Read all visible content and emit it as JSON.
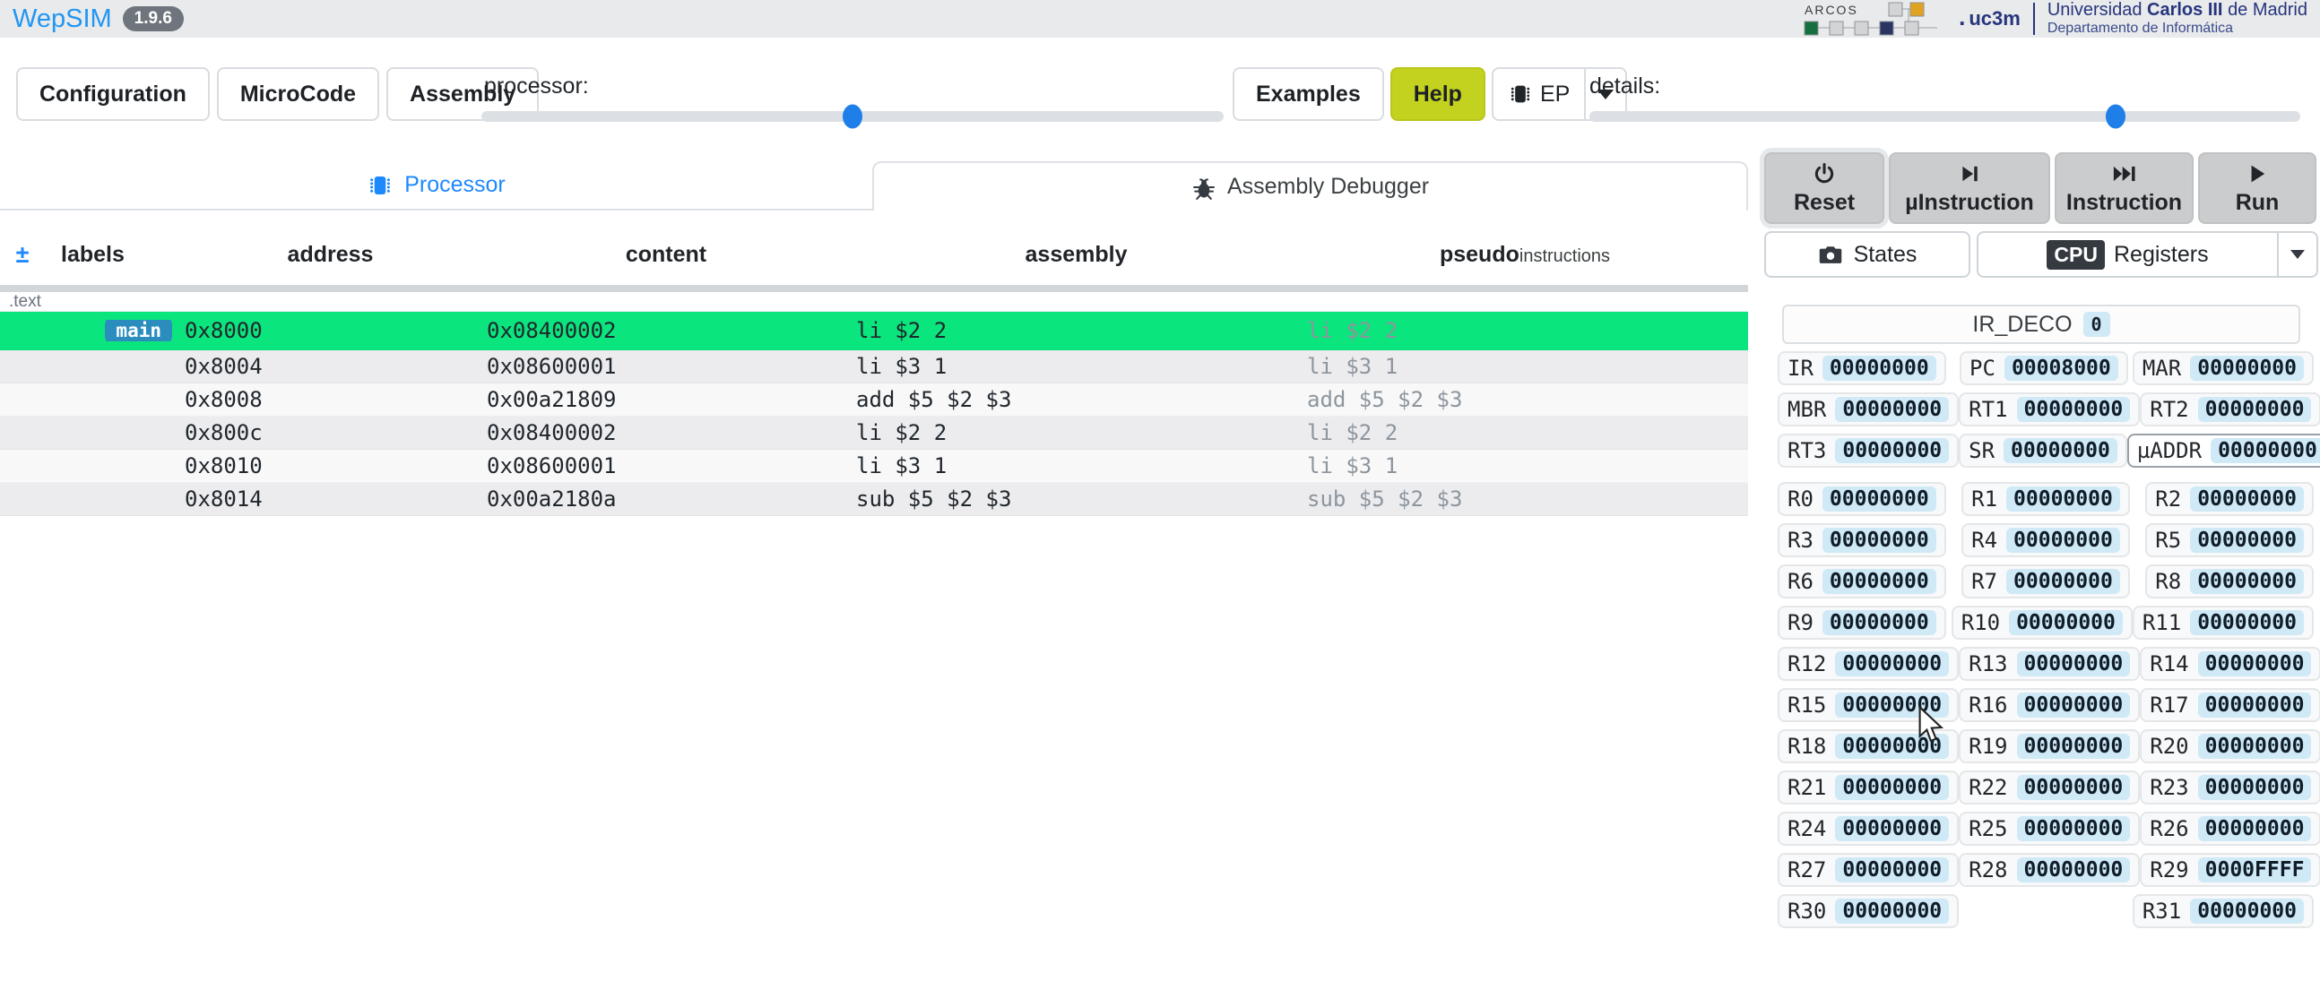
{
  "colors": {
    "active_row_green": "#0be57e",
    "label_badge_blue": "#2b8dbe",
    "help_button_yellow": "#c3d21f",
    "link_blue": "#1e88ff",
    "value_badge_blue": "#cfe9f6",
    "slider_thumb_blue": "#1f7fe8"
  },
  "header": {
    "app_title": "WepSIM",
    "version_badge": "1.9.6",
    "arcos_label": "ARCOS",
    "uc3m_label": "uc3m",
    "university_prefix": "Universidad",
    "university_bold": "Carlos III",
    "university_suffix": "de Madrid",
    "department": "Departamento de Informática"
  },
  "toolbar": {
    "configuration_label": "Configuration",
    "microcode_label": "MicroCode",
    "assembly_label": "Assembly",
    "processor_label": "processor:",
    "processor_slider_percent": 50,
    "examples_label": "Examples",
    "help_label": "Help",
    "ep_label": "EP",
    "details_label": "details:",
    "details_slider_percent": 74
  },
  "tabs": {
    "processor_label": "Processor",
    "debugger_label": "Assembly Debugger"
  },
  "table": {
    "sort_symbol": "±",
    "headers": {
      "labels": "labels",
      "address": "address",
      "content": "content",
      "assembly": "assembly",
      "pseudo_bold": "pseudo",
      "pseudo_suffix": "instructions"
    },
    "section_label": ".text",
    "rows": [
      {
        "label": "main",
        "address": "0x8000",
        "content": "0x08400002",
        "assembly": "li $2 2",
        "pseudo": "li $2 2",
        "state": "active"
      },
      {
        "label": "",
        "address": "0x8004",
        "content": "0x08600001",
        "assembly": "li $3 1",
        "pseudo": "li $3 1",
        "state": "normal"
      },
      {
        "label": "",
        "address": "0x8008",
        "content": "0x00a21809",
        "assembly": "add $5 $2 $3",
        "pseudo": "add $5 $2 $3",
        "state": "normal"
      },
      {
        "label": "",
        "address": "0x800c",
        "content": "0x08400002",
        "assembly": "li $2 2",
        "pseudo": "li $2 2",
        "state": "normal"
      },
      {
        "label": "",
        "address": "0x8010",
        "content": "0x08600001",
        "assembly": "li $3 1",
        "pseudo": "li $3 1",
        "state": "normal"
      },
      {
        "label": "",
        "address": "0x8014",
        "content": "0x00a2180a",
        "assembly": "sub $5 $2 $3",
        "pseudo": "sub $5 $2 $3",
        "state": "normal"
      }
    ]
  },
  "panel": {
    "reset_label": "Reset",
    "uinstruction_label": "µInstruction",
    "instruction_label": "Instruction",
    "run_label": "Run",
    "states_label": "States",
    "cpu_badge": "CPU",
    "registers_label": "Registers",
    "ir_deco_label": "IR_DECO",
    "ir_deco_value": "0",
    "special_rows": [
      [
        {
          "name": "IR",
          "value": "00000000"
        },
        {
          "name": "PC",
          "value": "00008000"
        },
        {
          "name": "MAR",
          "value": "00000000"
        }
      ],
      [
        {
          "name": "MBR",
          "value": "00000000"
        },
        {
          "name": "RT1",
          "value": "00000000"
        },
        {
          "name": "RT2",
          "value": "00000000"
        }
      ],
      [
        {
          "name": "RT3",
          "value": "00000000"
        },
        {
          "name": "SR",
          "value": "00000000"
        },
        {
          "name": "µADDR",
          "value": "00000000",
          "highlight": true
        }
      ]
    ],
    "gpr_rows": [
      [
        {
          "name": "R0",
          "value": "00000000"
        },
        {
          "name": "R1",
          "value": "00000000"
        },
        {
          "name": "R2",
          "value": "00000000"
        }
      ],
      [
        {
          "name": "R3",
          "value": "00000000"
        },
        {
          "name": "R4",
          "value": "00000000"
        },
        {
          "name": "R5",
          "value": "00000000"
        }
      ],
      [
        {
          "name": "R6",
          "value": "00000000"
        },
        {
          "name": "R7",
          "value": "00000000"
        },
        {
          "name": "R8",
          "value": "00000000"
        }
      ],
      [
        {
          "name": "R9",
          "value": "00000000"
        },
        {
          "name": "R10",
          "value": "00000000"
        },
        {
          "name": "R11",
          "value": "00000000"
        }
      ],
      [
        {
          "name": "R12",
          "value": "00000000"
        },
        {
          "name": "R13",
          "value": "00000000"
        },
        {
          "name": "R14",
          "value": "00000000"
        }
      ],
      [
        {
          "name": "R15",
          "value": "00000000"
        },
        {
          "name": "R16",
          "value": "00000000"
        },
        {
          "name": "R17",
          "value": "00000000"
        }
      ],
      [
        {
          "name": "R18",
          "value": "00000000"
        },
        {
          "name": "R19",
          "value": "00000000"
        },
        {
          "name": "R20",
          "value": "00000000"
        }
      ],
      [
        {
          "name": "R21",
          "value": "00000000"
        },
        {
          "name": "R22",
          "value": "00000000"
        },
        {
          "name": "R23",
          "value": "00000000"
        }
      ],
      [
        {
          "name": "R24",
          "value": "00000000"
        },
        {
          "name": "R25",
          "value": "00000000"
        },
        {
          "name": "R26",
          "value": "00000000"
        }
      ],
      [
        {
          "name": "R27",
          "value": "00000000"
        },
        {
          "name": "R28",
          "value": "00000000"
        },
        {
          "name": "R29",
          "value": "0000FFFF"
        }
      ],
      [
        {
          "name": "R30",
          "value": "00000000"
        },
        null,
        {
          "name": "R31",
          "value": "00000000"
        }
      ]
    ]
  }
}
